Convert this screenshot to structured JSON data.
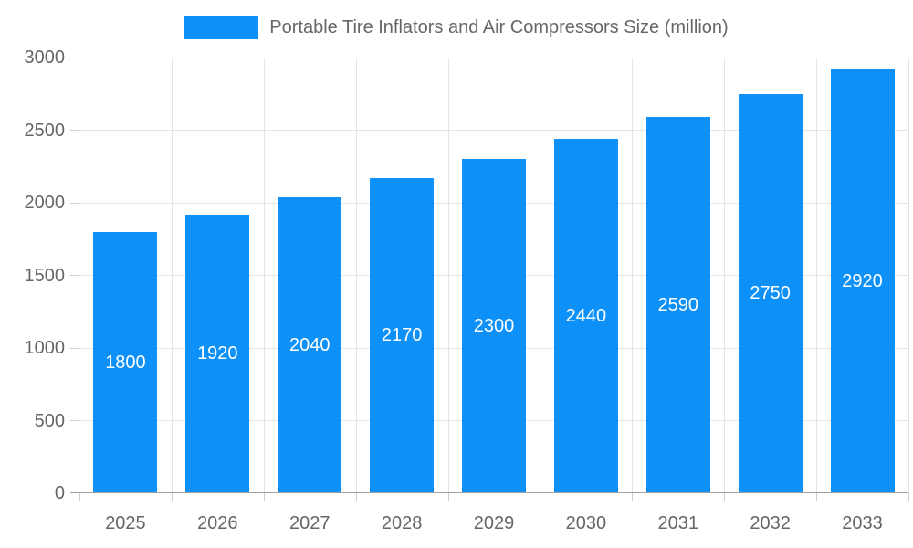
{
  "chart_data": {
    "type": "bar",
    "title": "Portable Tire Inflators and Air Compressors Size (million)",
    "series_name": "Portable Tire Inflators and Air Compressors Size (million)",
    "categories": [
      "2025",
      "2026",
      "2027",
      "2028",
      "2029",
      "2030",
      "2031",
      "2032",
      "2033"
    ],
    "values": [
      1800,
      1920,
      2040,
      2170,
      2300,
      2440,
      2590,
      2750,
      2920
    ],
    "xlabel": "",
    "ylabel": "",
    "ylim": [
      0,
      3000
    ],
    "yticks": [
      0,
      500,
      1000,
      1500,
      2000,
      2500,
      3000
    ],
    "grid": true,
    "legend_position": "top",
    "value_labels": "inside-center"
  },
  "colors": {
    "bar": "#0d90f8",
    "axis_line": "#9e9e9e",
    "gridline": "#e4e4e4",
    "tick_mark": "#cfcfcf",
    "tick_label": "#666666",
    "legend_label": "#666666",
    "value_label": "#ffffff",
    "background": "#ffffff"
  }
}
